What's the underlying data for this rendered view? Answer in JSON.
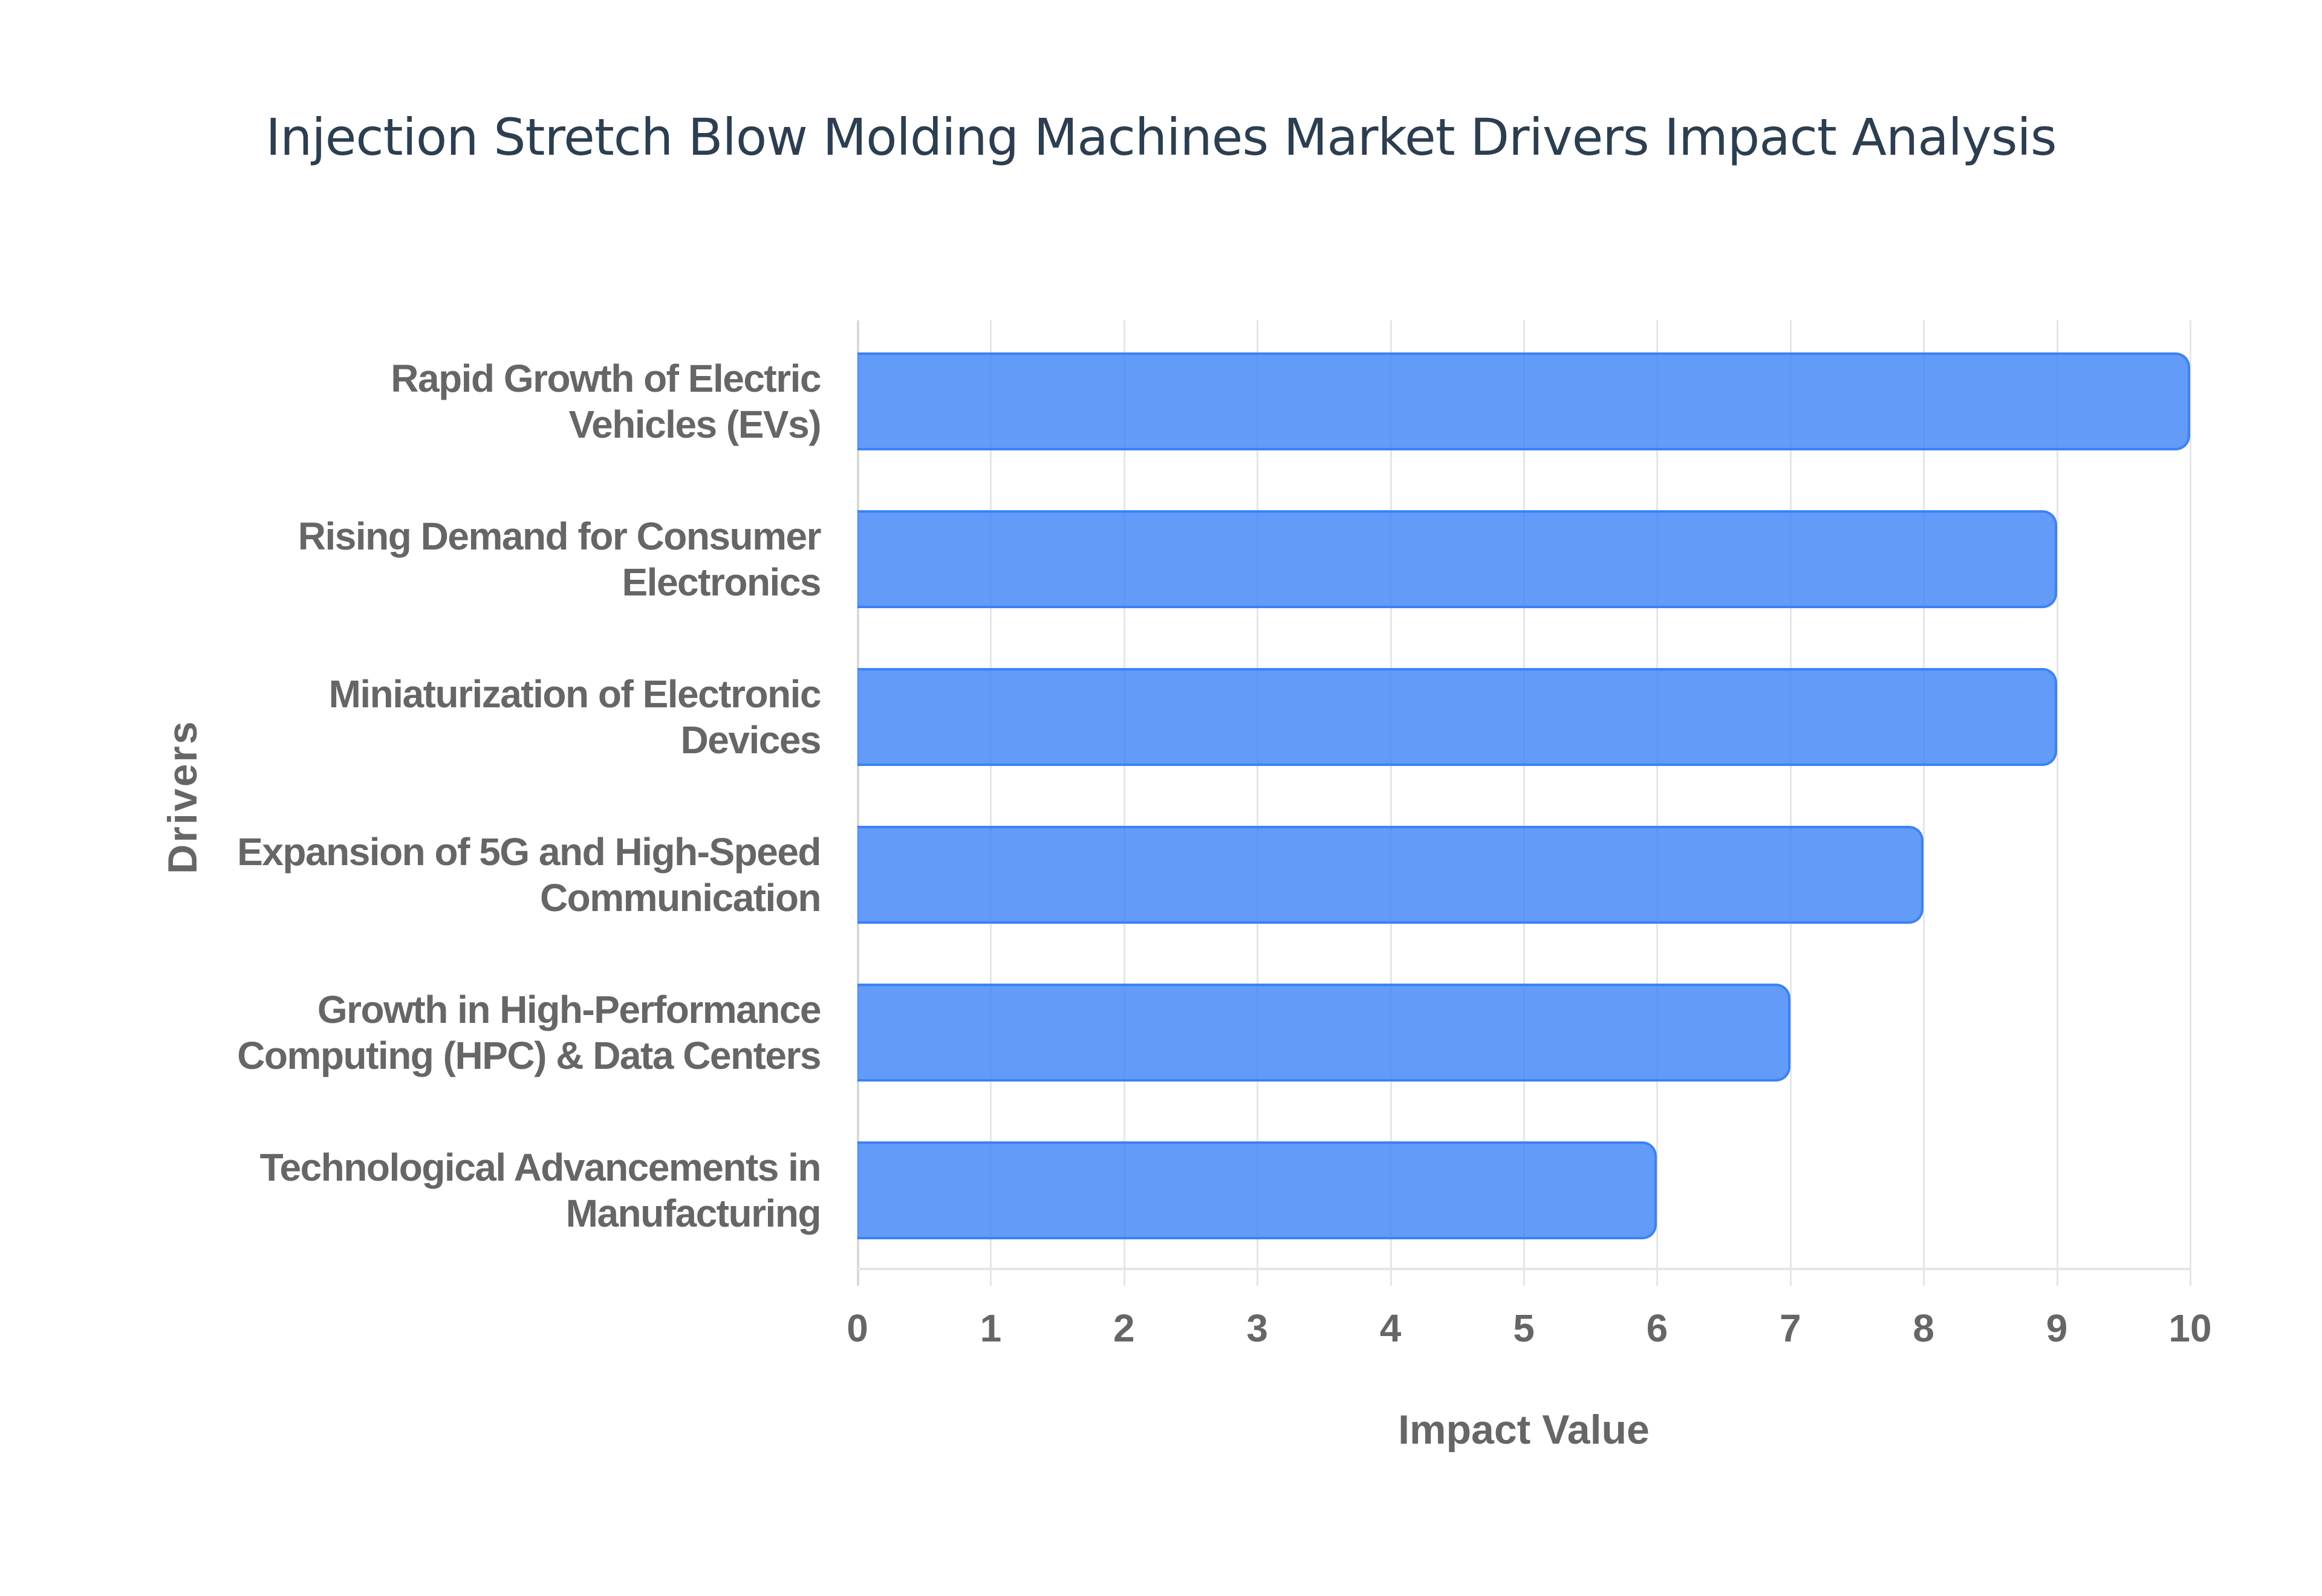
{
  "chart_data": {
    "type": "bar",
    "orientation": "horizontal",
    "title": "Injection Stretch Blow Molding Machines Market Drivers Impact Analysis",
    "xlabel": "Impact Value",
    "ylabel": "Drivers",
    "categories": [
      "Rapid Growth of Electric Vehicles (EVs)",
      "Rising Demand for Consumer Electronics",
      "Miniaturization of Electronic Devices",
      "Expansion of 5G and High-Speed Communication",
      "Growth in High-Performance Computing (HPC) & Data Centers",
      "Technological Advancements in Manufacturing"
    ],
    "values": [
      10,
      9,
      9,
      8,
      7,
      6
    ],
    "xlim": [
      0,
      10
    ],
    "xticks": [
      "0",
      "1",
      "2",
      "3",
      "4",
      "5",
      "6",
      "7",
      "8",
      "9",
      "10"
    ],
    "grid": true,
    "legend": null,
    "colors": {
      "bar_fill": "#6399f6",
      "bar_border": "#3b82f6",
      "title": "#2c3e50",
      "axis_text": "#666666",
      "grid": "#e6e6e6"
    }
  },
  "labels": [
    [
      "Rapid Growth of Electric",
      "Vehicles (EVs)"
    ],
    [
      "Rising Demand for Consumer",
      "Electronics"
    ],
    [
      "Miniaturization of Electronic",
      "Devices"
    ],
    [
      "Expansion of 5G and High-Speed",
      "Communication"
    ],
    [
      "Growth in High-Performance",
      "Computing (HPC) & Data Centers"
    ],
    [
      "Technological Advancements in",
      "Manufacturing"
    ]
  ]
}
